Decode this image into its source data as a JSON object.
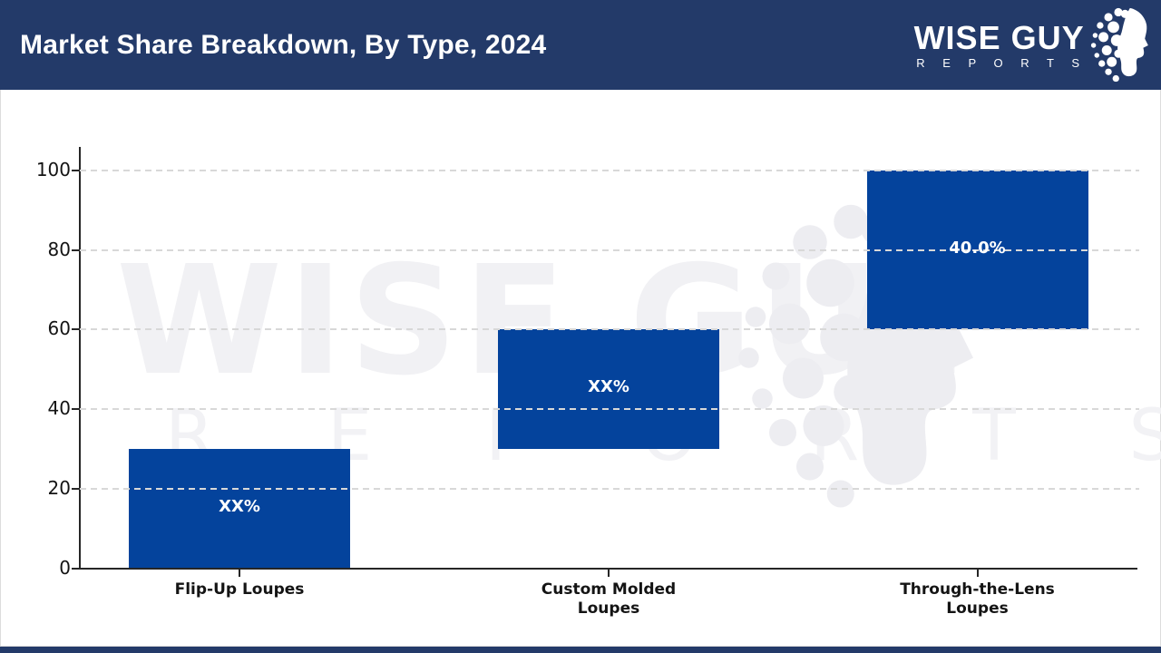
{
  "header": {
    "title": "Market Share Breakdown, By Type, 2024",
    "bg": "#233a69",
    "logo": {
      "line1": "WISE GUY",
      "line2": "R E P O R T S"
    }
  },
  "watermark": {
    "line1": "WISE GUY",
    "line2": "R E P O R T S"
  },
  "footer": {
    "bg": "#233a69"
  },
  "chart_data": {
    "type": "bar",
    "subtype": "floating-range-bars (waterfall style)",
    "title": "Market Share Breakdown, By Type, 2024",
    "categories": [
      "Flip-Up Loupes",
      "Custom Molded\nLoupes",
      "Through-the-Lens\nLoupes"
    ],
    "series": [
      {
        "name": "Market share (%)",
        "ranges": [
          [
            0,
            30
          ],
          [
            30,
            60
          ],
          [
            60,
            100
          ]
        ],
        "bar_labels": [
          "XX%",
          "XX%",
          "40.0%"
        ]
      }
    ],
    "xlabel": "",
    "ylabel": "",
    "yticks": [
      0,
      20,
      40,
      60,
      80,
      100
    ],
    "ylim": [
      0,
      105
    ],
    "grid": {
      "horizontal": true,
      "style": "dashed",
      "color": "#d8d8d8"
    },
    "legend": "none",
    "bar_color": "#04439c",
    "bar_label_color": "#ffffff",
    "axis_color": "#262626"
  }
}
